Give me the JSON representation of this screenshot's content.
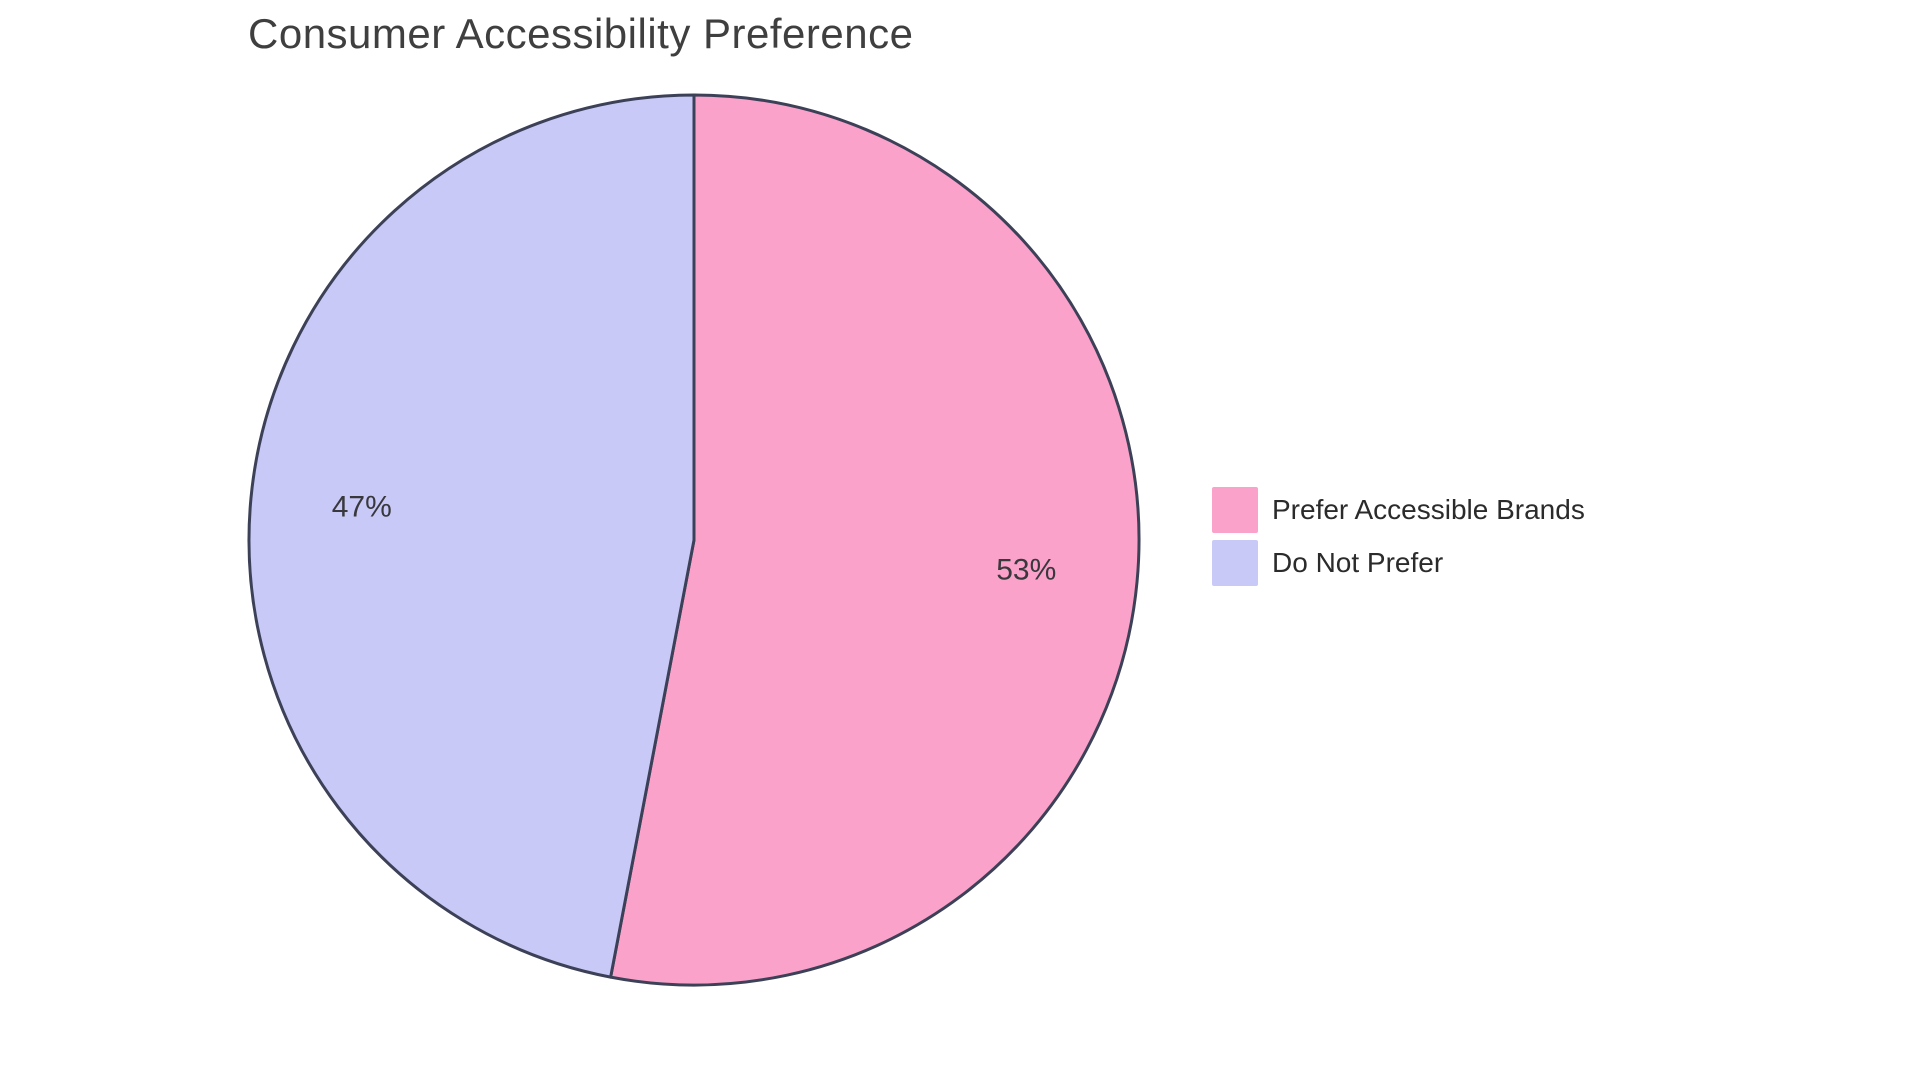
{
  "chart_data": {
    "type": "pie",
    "title": "Consumer Accessibility Preference",
    "categories": [
      "Prefer Accessible Brands",
      "Do Not Prefer"
    ],
    "values": [
      53,
      47
    ],
    "value_labels": [
      "53%",
      "47%"
    ],
    "colors": [
      "#FBA2CB",
      "#C9C9F7"
    ],
    "stroke_color": "#3C4158",
    "label_color": "#38383D",
    "legend_position": "right",
    "start_angle": "top",
    "direction": "clockwise",
    "legend": [
      {
        "label": "Prefer Accessible Brands",
        "color": "#FBA2CB"
      },
      {
        "label": "Do Not Prefer",
        "color": "#C9C9F7"
      }
    ]
  }
}
